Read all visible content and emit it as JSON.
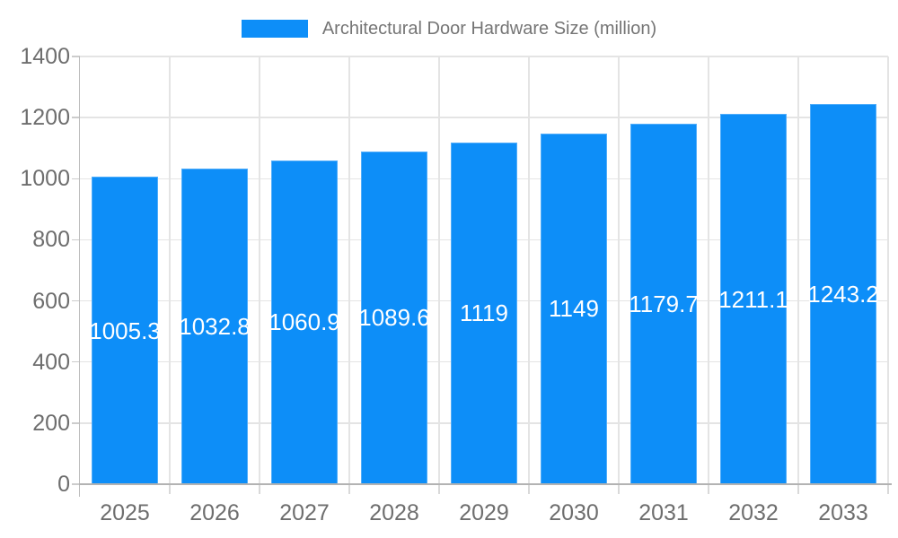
{
  "chart_data": {
    "type": "bar",
    "title": "Architectural Door Hardware Size (million)",
    "legend_position": "top",
    "categories": [
      "2025",
      "2026",
      "2027",
      "2028",
      "2029",
      "2030",
      "2031",
      "2032",
      "2033"
    ],
    "values": [
      1005.3,
      1032.8,
      1060.9,
      1089.6,
      1119,
      1149,
      1179.7,
      1211.1,
      1243.2
    ],
    "value_labels": [
      "1005.3",
      "1032.8",
      "1060.9",
      "1089.6",
      "1119",
      "1149",
      "1179.7",
      "1211.1",
      "1243.2"
    ],
    "xlabel": "",
    "ylabel": "",
    "ylim": [
      0,
      1400
    ],
    "ytick_step": 200,
    "yticks": [
      0,
      200,
      400,
      600,
      800,
      1000,
      1200,
      1400
    ],
    "grid": true,
    "colors": {
      "bar": "#0d8ef8",
      "value_label": "#ffffff",
      "gridline": "#e4e4e4",
      "y_axis_line": "#bdbdbd",
      "x_axis_line": "#b3b3b3",
      "tick_mark": "#cccccc",
      "x_tick_mark": "#d9d9d9",
      "axis_text": "#6e6e6e",
      "legend_text": "#757575",
      "background": "#ffffff"
    }
  }
}
